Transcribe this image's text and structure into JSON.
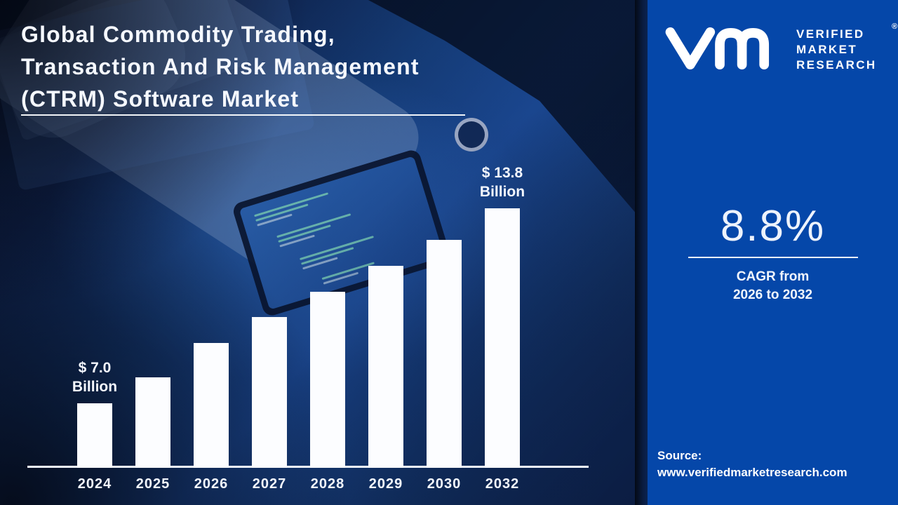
{
  "title": {
    "lines": [
      "Global Commodity Trading,",
      "Transaction And Risk Management",
      "(CTRM) Software Market"
    ]
  },
  "brand": {
    "name_lines": [
      "VERIFIED",
      "MARKET",
      "RESEARCH"
    ],
    "registered_mark": "®",
    "monogram_icon": "vmr-monogram"
  },
  "cagr": {
    "value": "8.8%",
    "caption_line1": "CAGR from",
    "caption_line2": "2026 to 2032"
  },
  "source": {
    "label": "Source:",
    "url": "www.verifiedmarketresearch.com"
  },
  "chart_data": {
    "type": "bar",
    "categories": [
      "2024",
      "2025",
      "2026",
      "2027",
      "2028",
      "2029",
      "2030",
      "2032"
    ],
    "values": [
      7.0,
      7.9,
      9.1,
      10.0,
      10.9,
      11.8,
      12.7,
      13.8
    ],
    "values_unit": "USD Billion",
    "values_note": "only 2024 and 2032 are labeled in the figure; intermediate values estimated from bar heights",
    "labeled_points": [
      {
        "category": "2024",
        "label_line1": "$ 7.0",
        "label_line2": "Billion"
      },
      {
        "category": "2032",
        "label_line1": "$ 13.8",
        "label_line2": "Billion"
      }
    ],
    "ylim": [
      7.0,
      13.8
    ],
    "bar_color": "#fcfdff",
    "axis_line_color": "#f4f8fe",
    "grid": false,
    "legend": false,
    "xlabel": "",
    "ylabel": ""
  },
  "colors": {
    "panel_blue": "#0547a9",
    "background_dark": "#0a1324",
    "background_mid_blue": "#1d4fa0",
    "text_white": "#ffffff"
  }
}
